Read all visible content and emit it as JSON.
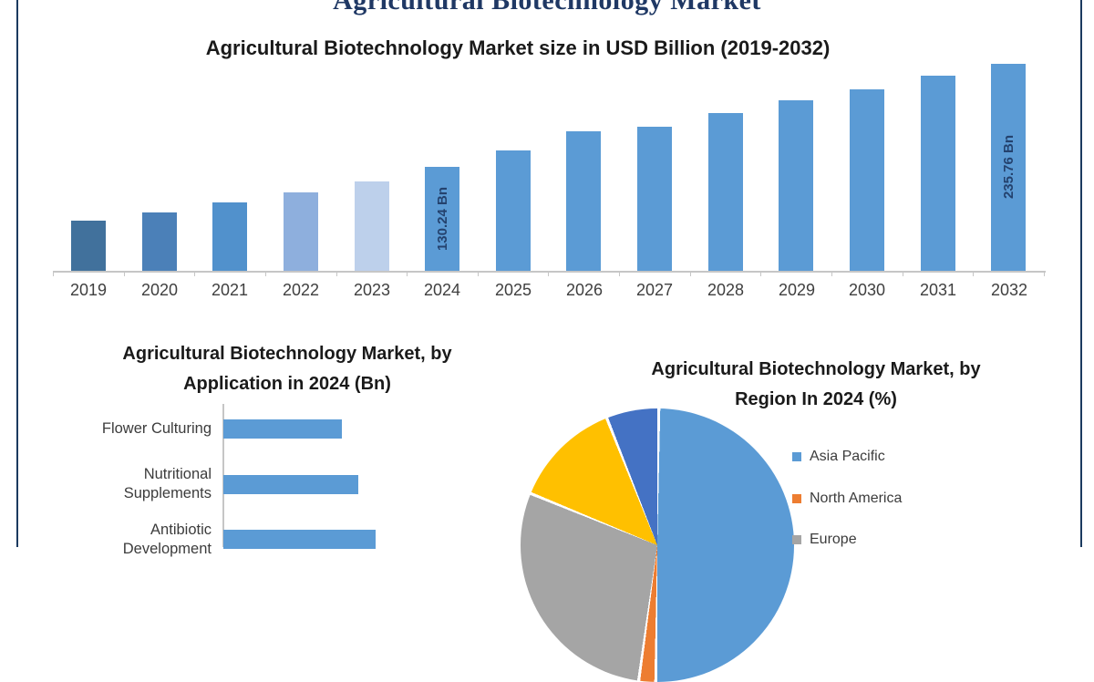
{
  "page": {
    "header_title": "Agricultural Biotechnology Market",
    "frame_color": "#1B3A5F",
    "background": "#ffffff"
  },
  "chart_data": [
    {
      "id": "market-size-bar",
      "type": "bar",
      "title": "Agricultural Biotechnology Market size in USD Billion (2019-2032)",
      "unit": "USD Billion",
      "categories": [
        "2019",
        "2020",
        "2021",
        "2022",
        "2023",
        "2024",
        "2025",
        "2026",
        "2027",
        "2028",
        "2029",
        "2030",
        "2031",
        "2032"
      ],
      "values": [
        75.2,
        83.6,
        93.8,
        104.1,
        115.3,
        130.24,
        147.1,
        166.7,
        171.3,
        185.3,
        198.4,
        209.6,
        223.6,
        235.76
      ],
      "data_labels": {
        "2024": "130.24 Bn",
        "2032": "235.76 Bn"
      },
      "ylim": [
        24,
        271
      ],
      "grid": false,
      "bar_colors": [
        "#41719C",
        "#4B80B8",
        "#5191CC",
        "#8EAFDD",
        "#BDD0EB",
        "#5B9BD5",
        "#5B9BD5",
        "#5B9BD5",
        "#5B9BD5",
        "#5B9BD5",
        "#5B9BD5",
        "#5B9BD5",
        "#5B9BD5",
        "#5B9BD5"
      ],
      "label_color": "#24426E"
    },
    {
      "id": "application-bar",
      "type": "bar",
      "orientation": "horizontal",
      "title": "Agricultural Biotechnology Market, by Application in 2024 (Bn)",
      "title_lines": [
        "Agricultural Biotechnology Market, by",
        "Application in 2024 (Bn)"
      ],
      "categories": [
        "Flower Culturing",
        "Nutritional Supplements",
        "Antibiotic Development"
      ],
      "display_lines": [
        [
          "Flower Culturing"
        ],
        [
          "Nutritional",
          "Supplements"
        ],
        [
          "Antibiotic",
          "Development"
        ]
      ],
      "values": [
        35,
        40,
        45
      ],
      "xlim": [
        0,
        100
      ],
      "grid": false,
      "bar_color": "#5B9BD5"
    },
    {
      "id": "region-pie",
      "type": "pie",
      "title_lines": [
        "Agricultural Biotechnology Market, by",
        "Region In 2024 (%)"
      ],
      "legend_position": "right",
      "slices": [
        {
          "label": "Asia Pacific",
          "value": 50,
          "color": "#5B9BD5",
          "in_legend": true
        },
        {
          "label": "North America",
          "value": 2,
          "color": "#ED7D31",
          "in_legend": true
        },
        {
          "label": "Europe",
          "value": 29,
          "color": "#A5A5A5",
          "in_legend": true
        },
        {
          "label": "",
          "value": 12.8,
          "color": "#FFC000",
          "in_legend": false
        },
        {
          "label": "",
          "value": 6.2,
          "color": "#4472C4",
          "in_legend": false
        }
      ]
    }
  ]
}
